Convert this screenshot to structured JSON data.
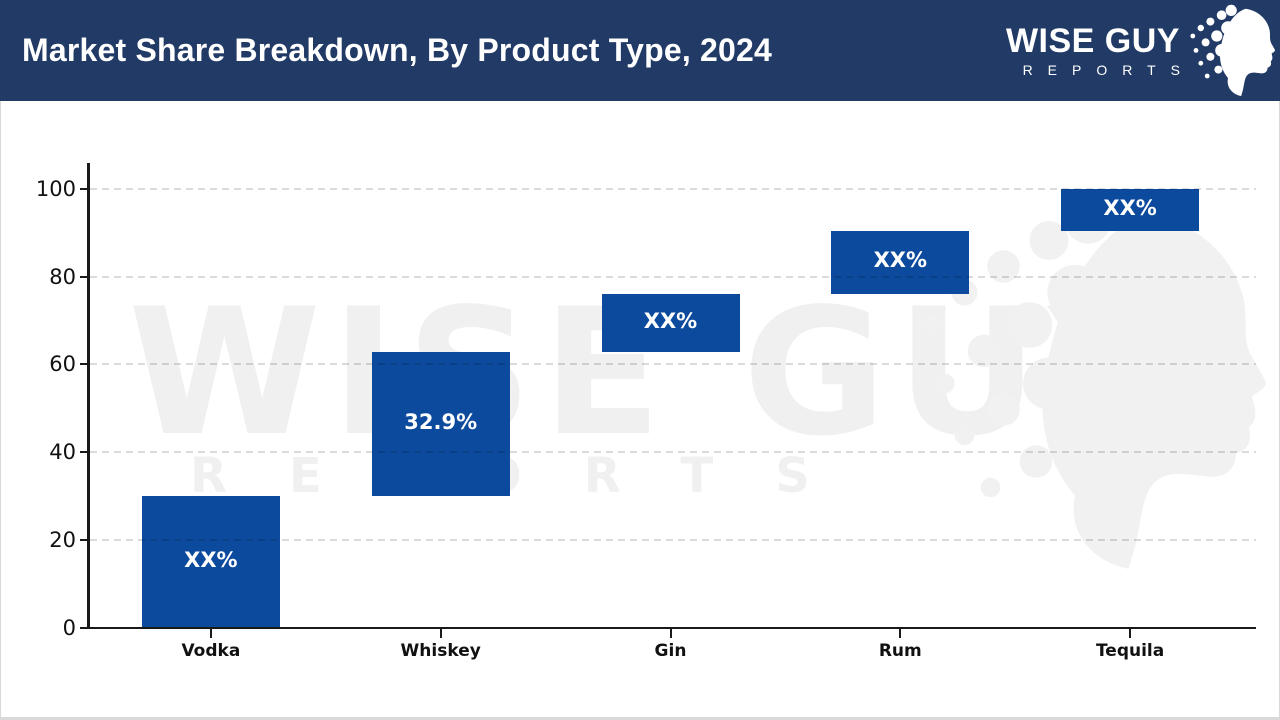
{
  "header": {
    "title": "Market Share Breakdown, By Product Type, 2024",
    "bg_color": "#213A66",
    "brand": {
      "line1": "WISE GUY",
      "line2": "REPORTS"
    }
  },
  "watermark": {
    "line1": "WISE GUY",
    "line2": "REPORTS",
    "color": "#f0f0f0"
  },
  "chart_data": {
    "type": "bar",
    "subtype": "waterfall-floating-segments",
    "title": "Market Share Breakdown, By Product Type, 2024",
    "categories": [
      "Vodka",
      "Whiskey",
      "Gin",
      "Rum",
      "Tequila"
    ],
    "segments": [
      {
        "category": "Vodka",
        "start": 0,
        "end": 29.9,
        "value_label": "XX%"
      },
      {
        "category": "Whiskey",
        "start": 29.9,
        "end": 62.8,
        "value": 32.9,
        "value_label": "32.9%"
      },
      {
        "category": "Gin",
        "start": 62.8,
        "end": 76.1,
        "value_label": "XX%"
      },
      {
        "category": "Rum",
        "start": 76.1,
        "end": 90.5,
        "value_label": "XX%"
      },
      {
        "category": "Tequila",
        "start": 90.5,
        "end": 100,
        "value_label": "XX%"
      }
    ],
    "yticks": [
      0,
      20,
      40,
      60,
      80,
      100
    ],
    "ylim": [
      0,
      105
    ],
    "xlabel": "",
    "ylabel": "",
    "grid": "horizontal-dashed-over-bars",
    "legend": "none",
    "bar_color": "#0C4A9E",
    "bar_label_color": "#FFFFFF",
    "axis_color": "#1a1a1a"
  }
}
